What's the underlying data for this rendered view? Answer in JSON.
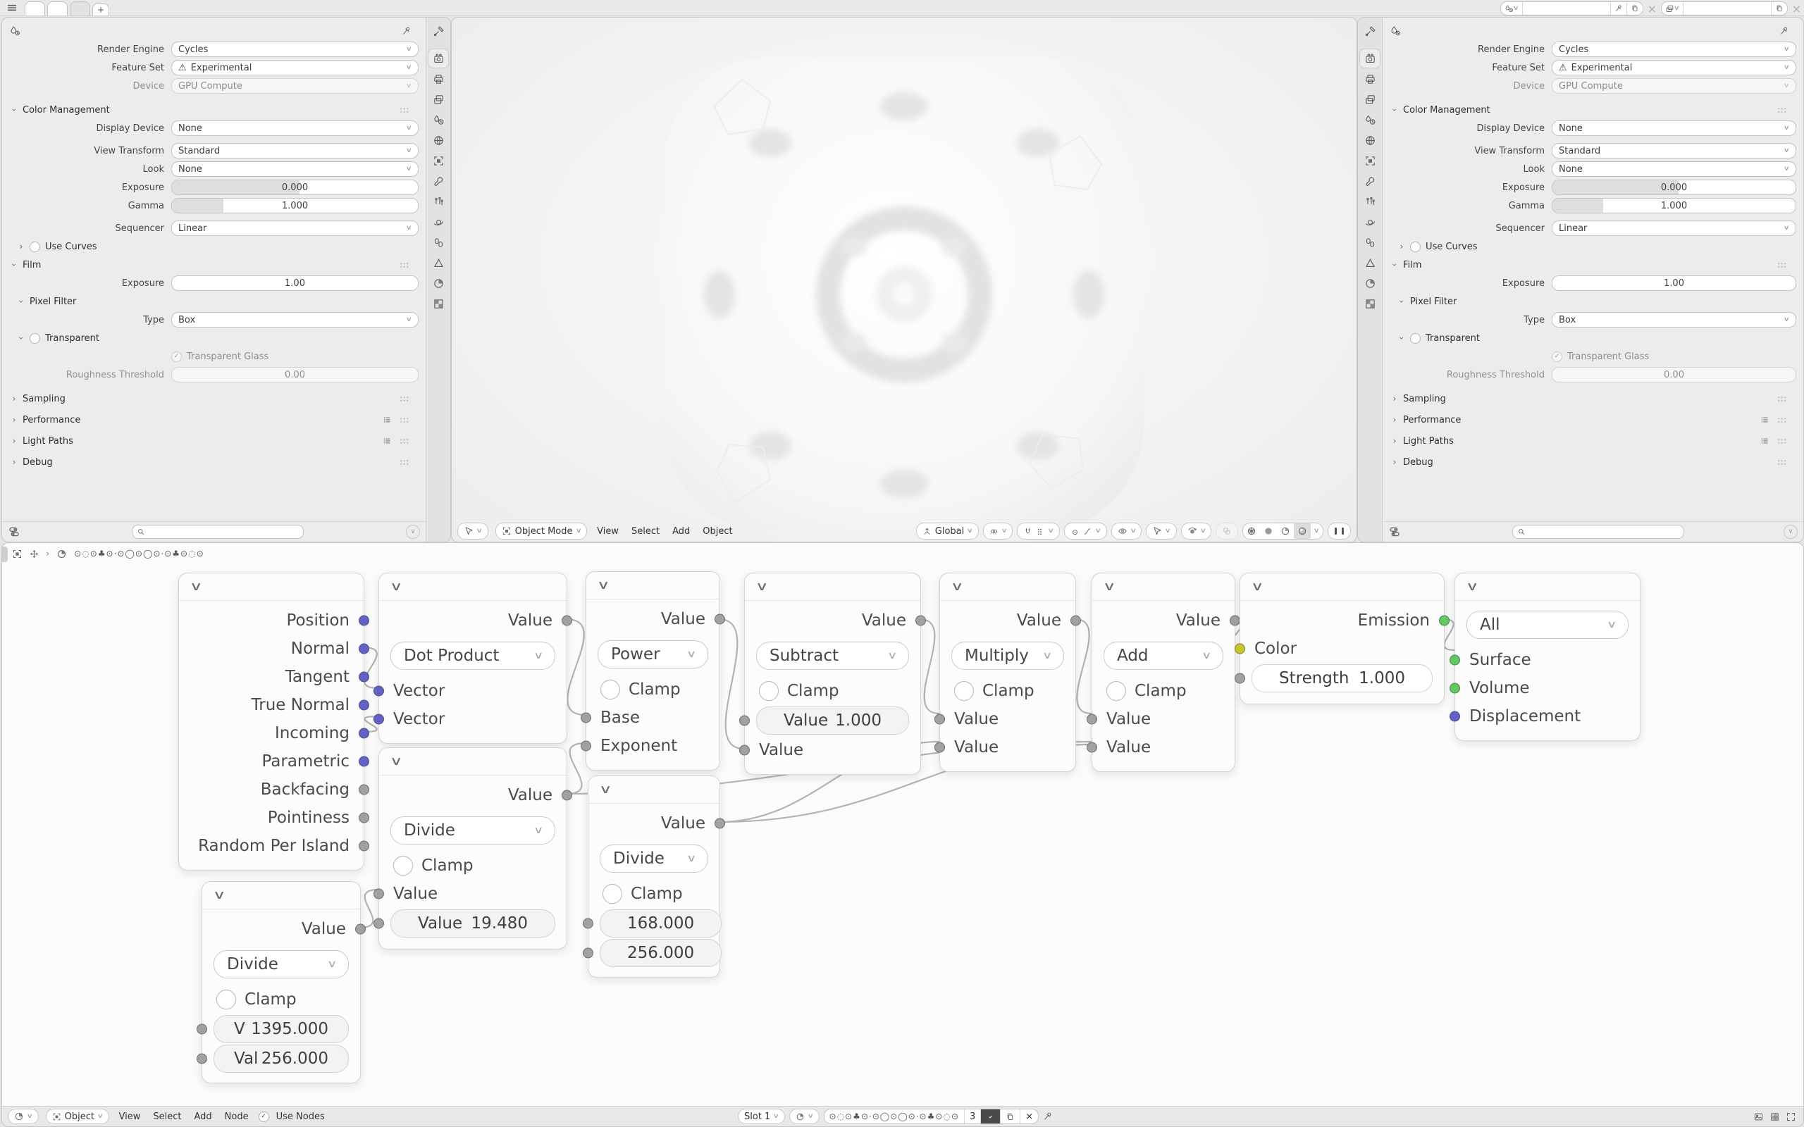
{
  "colors": {
    "socket_vector": "#6363C7",
    "socket_value": "#A1A1A1",
    "socket_shader": "#63C763",
    "socket_color": "#C7C729",
    "accent_selected_tab": "#ececec",
    "wire": "#b3b3b3"
  },
  "topbar": {
    "new_tab": "+"
  },
  "properties_tabs": {
    "items": [
      "tool",
      "render",
      "output",
      "view-layer",
      "scene",
      "world",
      "object",
      "modifiers",
      "particles",
      "physics",
      "constraints",
      "data",
      "material",
      "texture"
    ],
    "selected": "render"
  },
  "props": {
    "render_engine_label": "Render Engine",
    "render_engine_value": "Cycles",
    "feature_set_label": "Feature Set",
    "feature_set_value": "Experimental",
    "device_label": "Device",
    "device_value": "GPU Compute",
    "color_management": "Color Management",
    "display_device_label": "Display Device",
    "display_device_value": "None",
    "view_transform_label": "View Transform",
    "view_transform_value": "Standard",
    "look_label": "Look",
    "look_value": "None",
    "exposure_label": "Exposure",
    "exposure_value": "0.000",
    "gamma_label": "Gamma",
    "gamma_value": "1.000",
    "sequencer_label": "Sequencer",
    "sequencer_value": "Linear",
    "use_curves": "Use Curves",
    "film": "Film",
    "film_exposure_label": "Exposure",
    "film_exposure_value": "1.00",
    "pixel_filter": "Pixel Filter",
    "type_label": "Type",
    "type_value": "Box",
    "transparent": "Transparent",
    "transparent_glass": "Transparent Glass",
    "roughness_label": "Roughness Threshold",
    "roughness_value": "0.00",
    "sampling": "Sampling",
    "performance": "Performance",
    "light_paths": "Light Paths",
    "debug": "Debug",
    "check": "✓"
  },
  "viewport": {
    "mode": "Object Mode",
    "menu_view": "View",
    "menu_select": "Select",
    "menu_add": "Add",
    "menu_object": "Object",
    "orientation": "Global"
  },
  "node_editor": {
    "material_name": "⊙◌⊙♣⊙·⊙◯⊙◯⊙·⊙♣⊙◌⊙",
    "breadcrumb_sep": "›",
    "footer_object": "Object",
    "menu_view": "View",
    "menu_select": "Select",
    "menu_add": "Add",
    "menu_node": "Node",
    "use_nodes": "Use Nodes",
    "slot": "Slot 1",
    "users": "3",
    "check": "✓"
  },
  "nodes": {
    "geometry": {
      "outputs": [
        "Position",
        "Normal",
        "Tangent",
        "True Normal",
        "Incoming",
        "Parametric",
        "Backfacing",
        "Pointiness",
        "Random Per Island"
      ]
    },
    "vector_math": {
      "output": "Value",
      "operation": "Dot Product",
      "input1": "Vector",
      "input2": "Vector"
    },
    "math_divide_a": {
      "output": "Value",
      "operation": "Divide",
      "clamp": "Clamp",
      "input1": "Value",
      "field_label": "Value",
      "field_value": "19.480"
    },
    "math_power": {
      "output": "Value",
      "operation": "Power",
      "clamp": "Clamp",
      "input1": "Base",
      "input2": "Exponent"
    },
    "math_divide_b": {
      "output": "Value",
      "operation": "Divide",
      "clamp": "Clamp",
      "field1": "168.000",
      "field2": "256.000"
    },
    "math_subtract": {
      "output": "Value",
      "operation": "Subtract",
      "clamp": "Clamp",
      "field_label": "Value",
      "field_value": "1.000",
      "input2": "Value"
    },
    "math_multiply": {
      "output": "Value",
      "operation": "Multiply",
      "clamp": "Clamp",
      "input1": "Value",
      "input2": "Value"
    },
    "math_add": {
      "output": "Value",
      "operation": "Add",
      "clamp": "Clamp",
      "input1": "Value",
      "input2": "Value"
    },
    "emission": {
      "output": "Emission",
      "input_color": "Color",
      "strength_label": "Strength",
      "strength_value": "1.000"
    },
    "material_output": {
      "target": "All",
      "input1": "Surface",
      "input2": "Volume",
      "input3": "Displacement"
    },
    "math_divide_c": {
      "output": "Value",
      "operation": "Divide",
      "clamp": "Clamp",
      "field1_label": "V",
      "field1_value": "1395.000",
      "field2_label": "Val",
      "field2_value": "256.000"
    }
  },
  "links": [
    {
      "from": "Geometry.Normal",
      "to": "Vector Math.Vector 1"
    },
    {
      "from": "Geometry.Incoming",
      "to": "Vector Math.Vector 2"
    },
    {
      "from": "Vector Math.Value",
      "to": "Power.Base"
    },
    {
      "from": "Divide(V 1395).Value",
      "to": "Divide(19.480).Value"
    },
    {
      "from": "Divide(19.480).Value",
      "to": "Power.Exponent"
    },
    {
      "from": "Divide(19.480).Value",
      "to": "Add.Value 2"
    },
    {
      "from": "Power.Value",
      "to": "Subtract.Value 2"
    },
    {
      "from": "Divide(168/256).Value",
      "to": "Multiply.Value 2"
    },
    {
      "from": "Divide(168/256).Value",
      "to": "Add.Value 2"
    },
    {
      "from": "Subtract.Value",
      "to": "Multiply.Value 1"
    },
    {
      "from": "Multiply.Value",
      "to": "Add.Value 1"
    },
    {
      "from": "Add.Value",
      "to": "Emission.Color"
    },
    {
      "from": "Emission.Emission",
      "to": "Material Output.Surface"
    }
  ]
}
